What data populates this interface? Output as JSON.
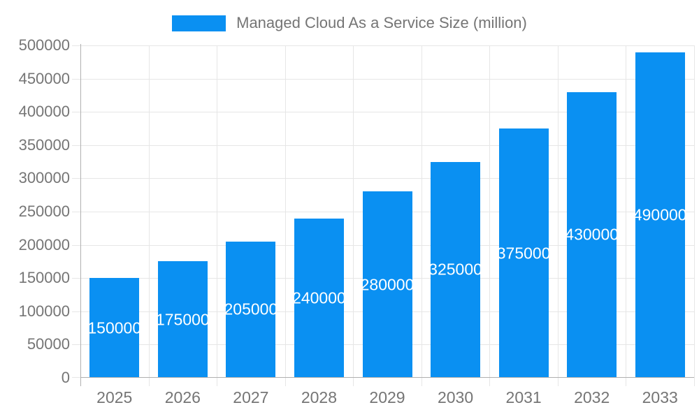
{
  "legend": {
    "series_label": "Managed Cloud As a Service Size (million)"
  },
  "colors": {
    "bar": "#0a90f2",
    "text": "#757575",
    "grid": "#e6e6e6",
    "axis": "#b0b0b0",
    "bar_label": "#ffffff",
    "background": "#ffffff"
  },
  "chart_data": {
    "type": "bar",
    "title": "Managed Cloud As a Service Size (million)",
    "categories": [
      "2025",
      "2026",
      "2027",
      "2028",
      "2029",
      "2030",
      "2031",
      "2032",
      "2033"
    ],
    "values": [
      150000,
      175000,
      205000,
      240000,
      280000,
      325000,
      375000,
      430000,
      490000
    ],
    "bar_labels": [
      "150000",
      "175000",
      "205000",
      "240000",
      "280000",
      "325000",
      "375000",
      "430000",
      "490000"
    ],
    "xlabel": "",
    "ylabel": "",
    "ylim": [
      0,
      500000
    ],
    "yticks": [
      0,
      50000,
      100000,
      150000,
      200000,
      250000,
      300000,
      350000,
      400000,
      450000,
      500000
    ],
    "grid": true,
    "legend_position": "top-center",
    "bar_labels_visible": true,
    "bar_label_position": "inside-center"
  }
}
